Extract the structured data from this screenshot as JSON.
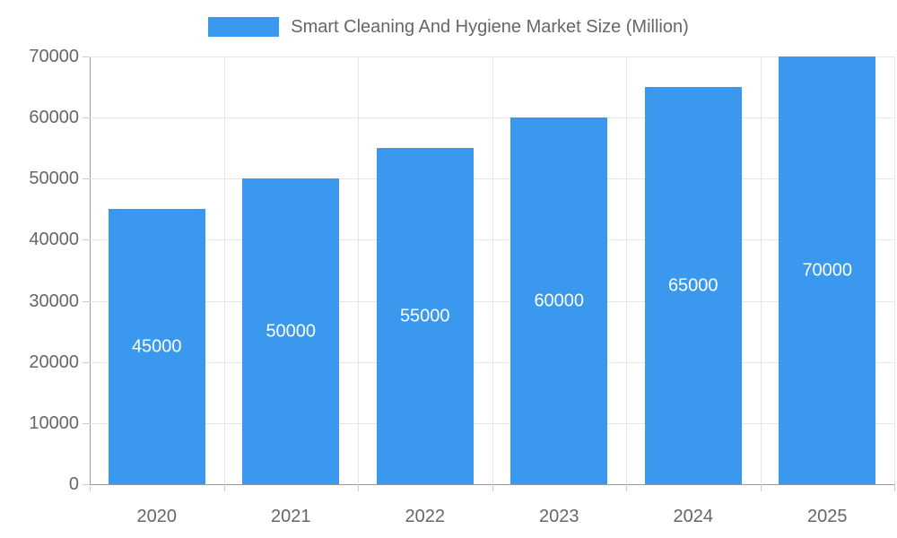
{
  "legend": {
    "series_label": "Smart Cleaning And Hygiene Market Size (Million)"
  },
  "chart_data": {
    "type": "bar",
    "title": "Smart Cleaning And Hygiene Market Size (Million)",
    "categories": [
      "2020",
      "2021",
      "2022",
      "2023",
      "2024",
      "2025"
    ],
    "values": [
      45000,
      50000,
      55000,
      60000,
      65000,
      70000
    ],
    "bar_labels": [
      "45000",
      "50000",
      "55000",
      "60000",
      "65000",
      "70000"
    ],
    "xlabel": "",
    "ylabel": "",
    "ylim": [
      0,
      70000
    ],
    "ytick_step": 10000,
    "ytick_labels": [
      "0",
      "10000",
      "20000",
      "30000",
      "40000",
      "50000",
      "60000",
      "70000"
    ],
    "grid": true,
    "legend_position": "top-center",
    "colors": {
      "bar": "#3A99EE",
      "text": "#666666",
      "grid": "#E6E6E6",
      "axis": "#999999",
      "tick": "#CCCCCC",
      "value_label": "#FFFFFF",
      "background": "#FFFFFF"
    }
  }
}
